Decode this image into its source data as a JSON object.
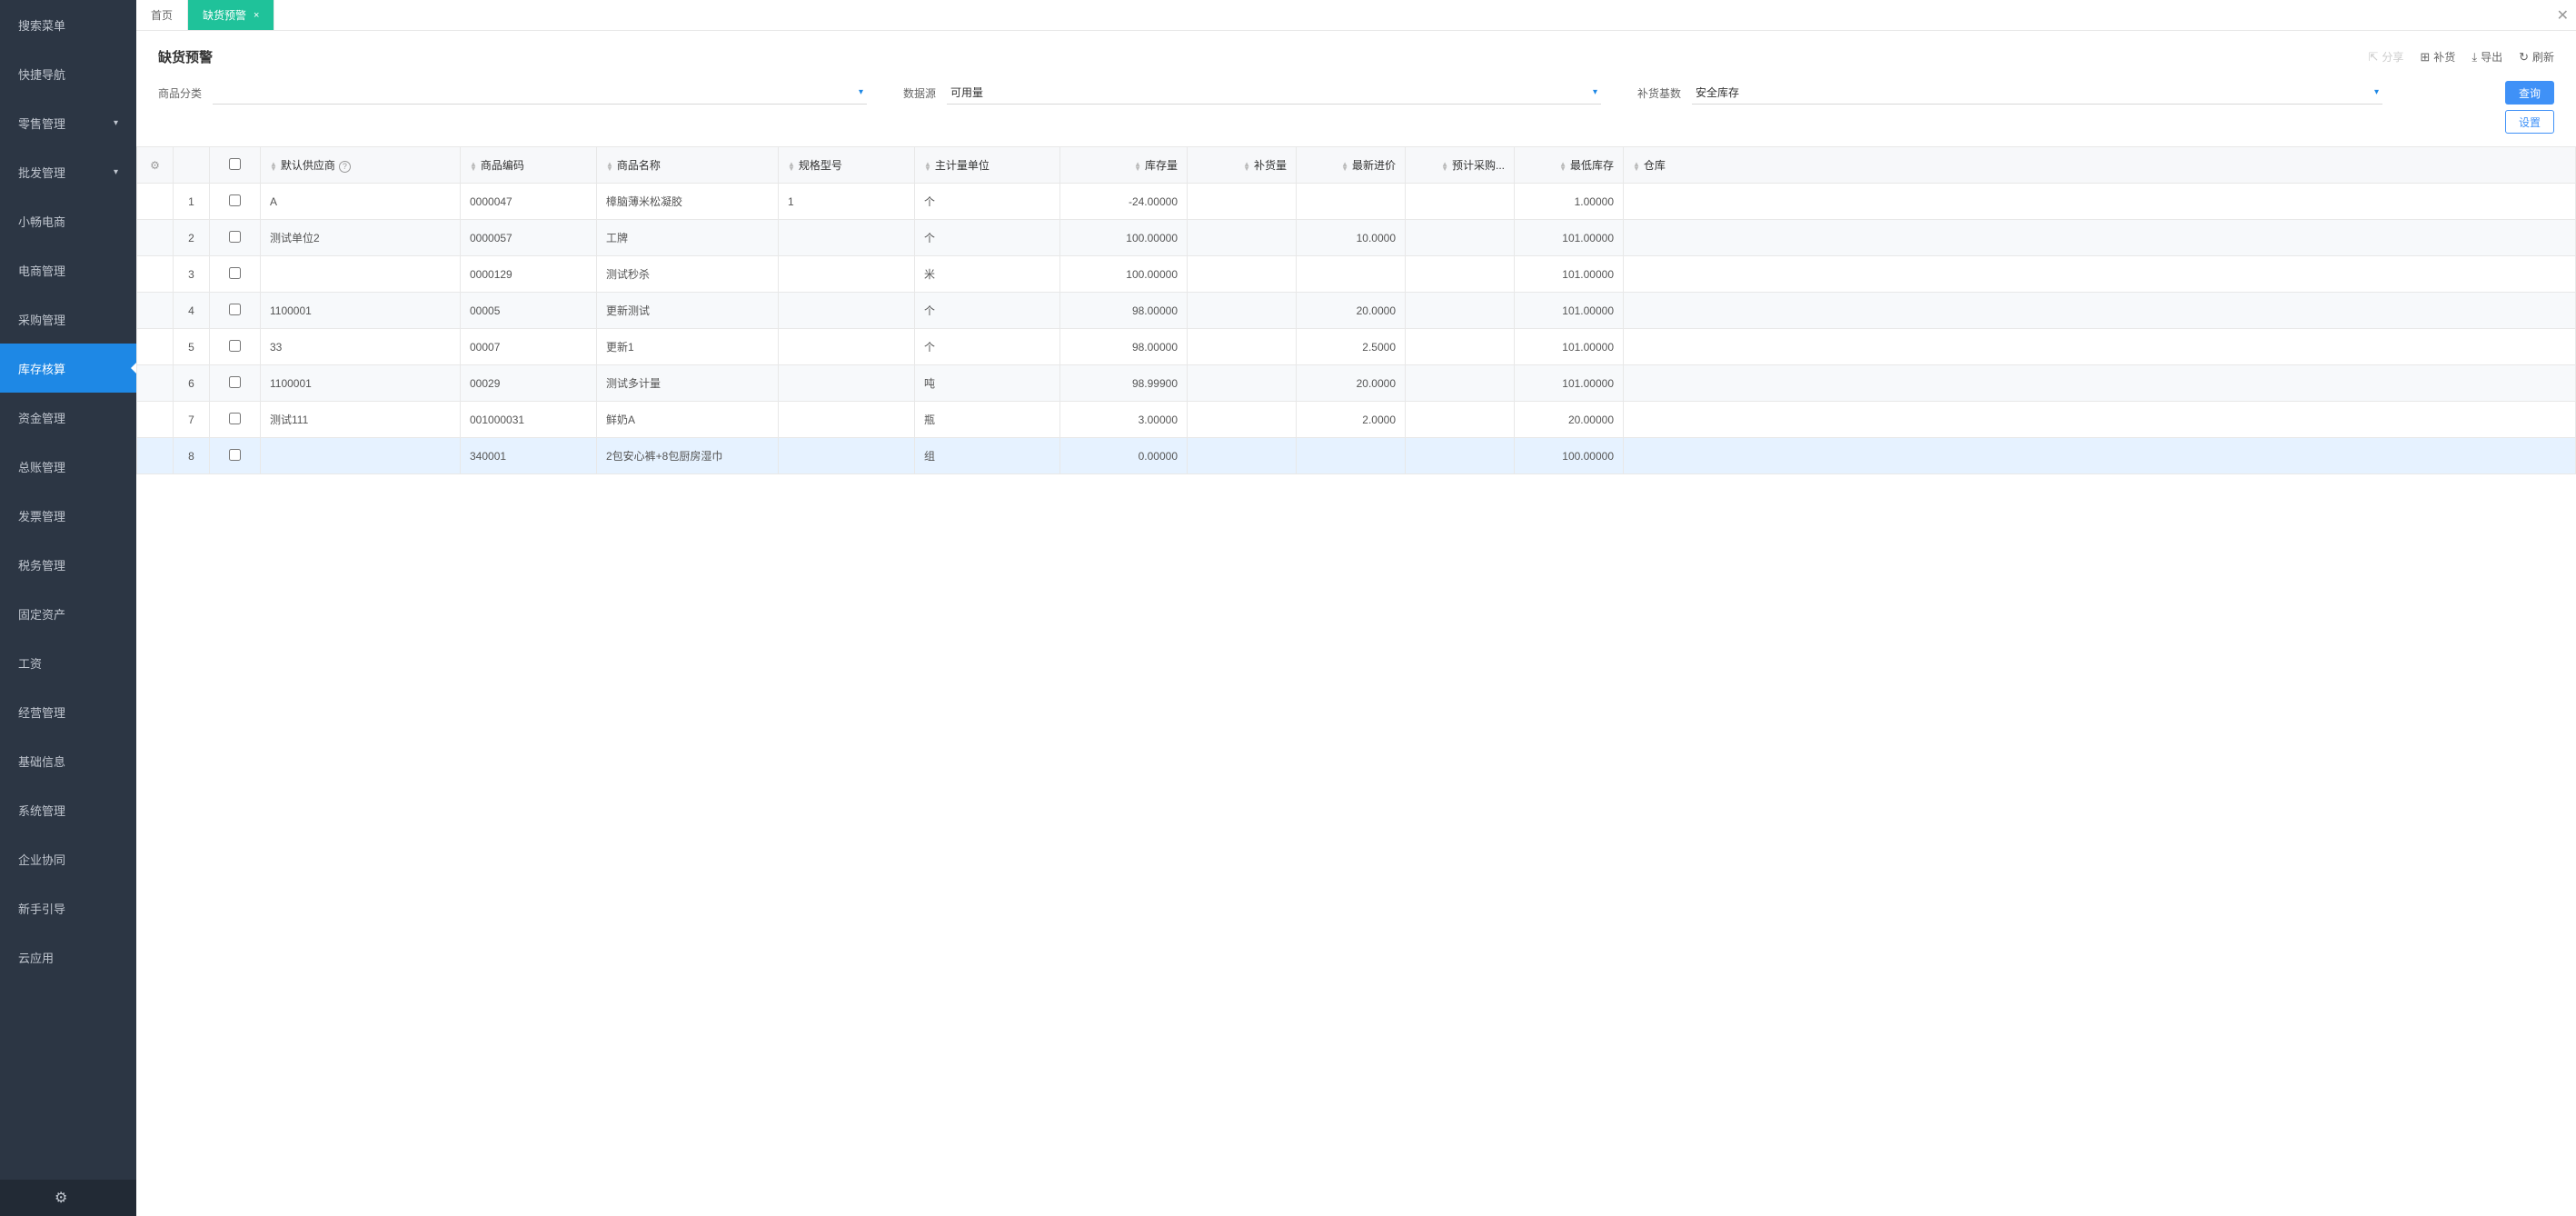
{
  "sidebar": {
    "items": [
      {
        "label": "搜索菜单",
        "expandable": false
      },
      {
        "label": "快捷导航",
        "expandable": false
      },
      {
        "label": "零售管理",
        "expandable": true
      },
      {
        "label": "批发管理",
        "expandable": true
      },
      {
        "label": "小畅电商",
        "expandable": false
      },
      {
        "label": "电商管理",
        "expandable": false
      },
      {
        "label": "采购管理",
        "expandable": false
      },
      {
        "label": "库存核算",
        "expandable": false,
        "active": true
      },
      {
        "label": "资金管理",
        "expandable": false
      },
      {
        "label": "总账管理",
        "expandable": false
      },
      {
        "label": "发票管理",
        "expandable": false
      },
      {
        "label": "税务管理",
        "expandable": false
      },
      {
        "label": "固定资产",
        "expandable": false
      },
      {
        "label": "工资",
        "expandable": false
      },
      {
        "label": "经营管理",
        "expandable": false
      },
      {
        "label": "基础信息",
        "expandable": false
      },
      {
        "label": "系统管理",
        "expandable": false
      },
      {
        "label": "企业协同",
        "expandable": false
      },
      {
        "label": "新手引导",
        "expandable": false
      },
      {
        "label": "云应用",
        "expandable": false
      }
    ]
  },
  "tabs": {
    "items": [
      {
        "label": "首页",
        "closable": false
      },
      {
        "label": "缺货预警",
        "closable": true,
        "active": true
      }
    ]
  },
  "page": {
    "title": "缺货预警"
  },
  "header_actions": {
    "share": "分享",
    "replenish": "补货",
    "export": "导出",
    "refresh": "刷新"
  },
  "filters": {
    "category_label": "商品分类",
    "category_value": "",
    "source_label": "数据源",
    "source_value": "可用量",
    "basis_label": "补货基数",
    "basis_value": "安全库存",
    "query_btn": "查询",
    "settings_btn": "设置"
  },
  "table": {
    "columns": {
      "supplier": "默认供应商",
      "code": "商品编码",
      "name": "商品名称",
      "spec": "规格型号",
      "unit": "主计量单位",
      "stock": "库存量",
      "replenish": "补货量",
      "latest_price": "最新进价",
      "est_purchase": "预计采购...",
      "min_stock": "最低库存",
      "warehouse": "仓库"
    },
    "rows": [
      {
        "idx": "1",
        "supplier": "A",
        "code": "0000047",
        "name": "樟脑薄米松凝胶",
        "spec": "1",
        "unit": "个",
        "stock": "-24.00000",
        "replenish": "",
        "latest_price": "",
        "est": "",
        "min": "1.00000",
        "wh": ""
      },
      {
        "idx": "2",
        "supplier": "测试单位2",
        "code": "0000057",
        "name": "工牌",
        "spec": "",
        "unit": "个",
        "stock": "100.00000",
        "replenish": "",
        "latest_price": "10.0000",
        "est": "",
        "min": "101.00000",
        "wh": ""
      },
      {
        "idx": "3",
        "supplier": "",
        "code": "0000129",
        "name": "测试秒杀",
        "spec": "",
        "unit": "米",
        "stock": "100.00000",
        "replenish": "",
        "latest_price": "",
        "est": "",
        "min": "101.00000",
        "wh": ""
      },
      {
        "idx": "4",
        "supplier": "1100001",
        "code": "00005",
        "name": "更新测试",
        "spec": "",
        "unit": "个",
        "stock": "98.00000",
        "replenish": "",
        "latest_price": "20.0000",
        "est": "",
        "min": "101.00000",
        "wh": ""
      },
      {
        "idx": "5",
        "supplier": "33",
        "code": "00007",
        "name": "更新1",
        "spec": "",
        "unit": "个",
        "stock": "98.00000",
        "replenish": "",
        "latest_price": "2.5000",
        "est": "",
        "min": "101.00000",
        "wh": ""
      },
      {
        "idx": "6",
        "supplier": "1100001",
        "code": "00029",
        "name": "测试多计量",
        "spec": "",
        "unit": "吨",
        "stock": "98.99900",
        "replenish": "",
        "latest_price": "20.0000",
        "est": "",
        "min": "101.00000",
        "wh": ""
      },
      {
        "idx": "7",
        "supplier": "测试111",
        "code": "001000031",
        "name": "鲜奶A",
        "spec": "",
        "unit": "瓶",
        "stock": "3.00000",
        "replenish": "",
        "latest_price": "2.0000",
        "est": "",
        "min": "20.00000",
        "wh": ""
      },
      {
        "idx": "8",
        "supplier": "",
        "code": "340001",
        "name": "2包安心裤+8包厨房湿巾",
        "spec": "",
        "unit": "组",
        "stock": "0.00000",
        "replenish": "",
        "latest_price": "",
        "est": "",
        "min": "100.00000",
        "wh": "",
        "hl": true
      }
    ]
  }
}
